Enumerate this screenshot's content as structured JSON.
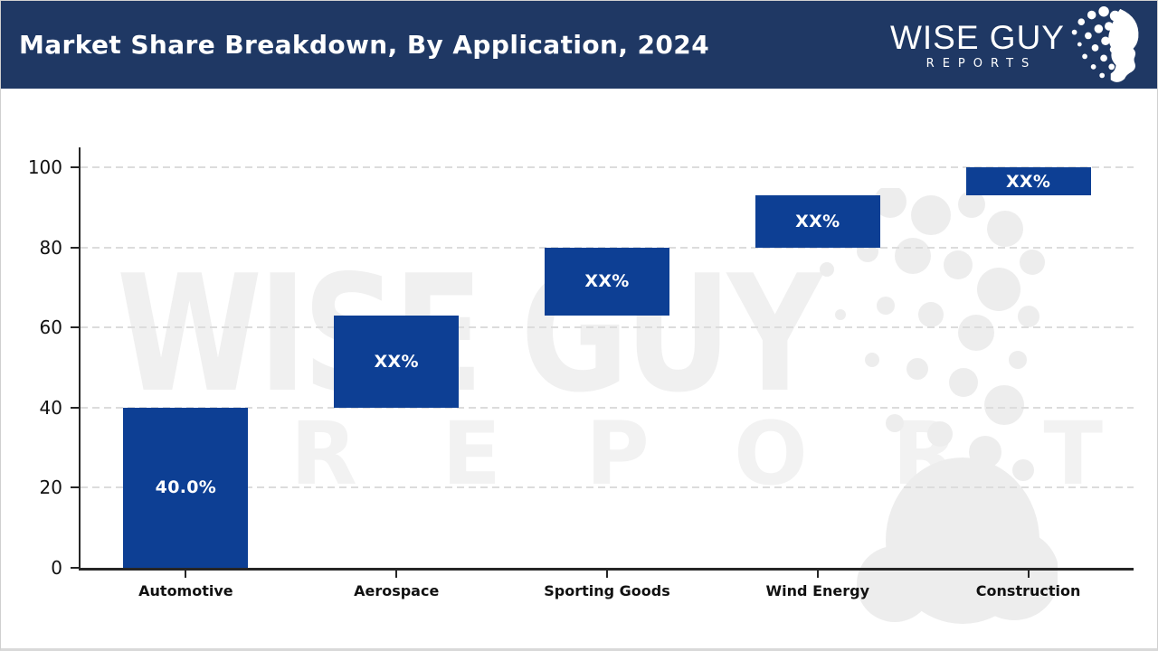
{
  "header": {
    "title": "Market Share Breakdown, By Application, 2024",
    "logo": {
      "line1": "WISE GUY",
      "line2": "REPORTS"
    }
  },
  "watermark": {
    "line1": "WISE GUY",
    "line2": "REPORTS"
  },
  "chart_data": {
    "type": "bar",
    "subtype": "waterfall",
    "title": "Market Share Breakdown, By Application, 2024",
    "categories": [
      "Automotive",
      "Aerospace",
      "Sporting Goods",
      "Wind Energy",
      "Construction"
    ],
    "series": [
      {
        "name": "Market share (%)",
        "values": [
          40,
          23,
          17,
          13,
          7
        ],
        "cumulative_start": [
          0,
          40,
          63,
          80,
          93
        ],
        "cumulative_end": [
          40,
          63,
          80,
          93,
          100
        ]
      }
    ],
    "bar_labels": [
      "40.0%",
      "XX%",
      "XX%",
      "XX%",
      "XX%"
    ],
    "xlabel": "",
    "ylabel": "",
    "yticks": [
      0,
      20,
      40,
      60,
      80,
      100
    ],
    "ylim": [
      0,
      105
    ],
    "grid": "horizontal-dashed",
    "legend": "none",
    "bar_color": "#0d3f94",
    "colors": {
      "header_bg": "#1f3864",
      "grid": "#dcdcdc",
      "axis": "#262626",
      "label_text": "#111111",
      "bar_label_text": "#ffffff",
      "watermark": "#f0f0f0"
    }
  }
}
